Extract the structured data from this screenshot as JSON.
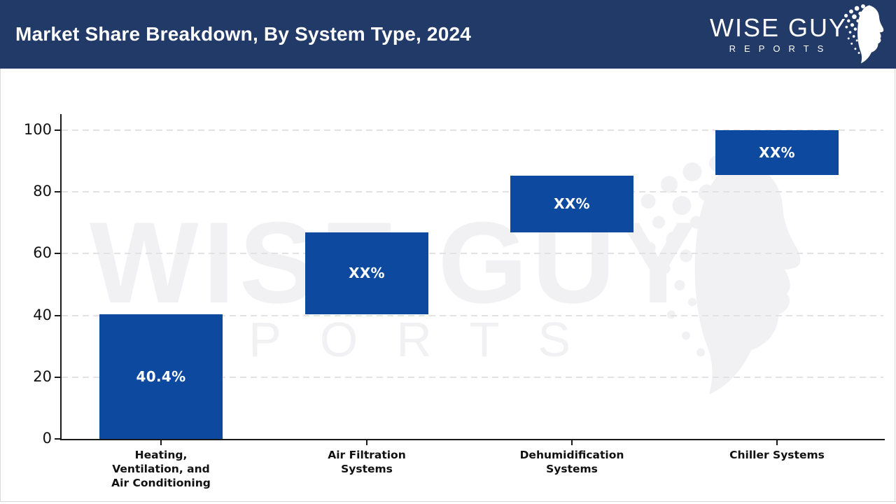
{
  "header": {
    "background": "#223a68",
    "title": "Market Share Breakdown, By System Type, 2024",
    "logo": {
      "primary": "WISE GUY",
      "secondary": "REPORTS",
      "icon": "dotted-face-profile-icon"
    }
  },
  "watermark": {
    "primary": "WISE GUY",
    "secondary": "REPORTS"
  },
  "chart_data": {
    "type": "bar",
    "subtype": "waterfall",
    "title": "Market Share Breakdown, By System Type, 2024",
    "categories": [
      "Heating,\nVentilation, and\nAir Conditioning",
      "Air Filtration\nSystems",
      "Dehumidification\nSystems",
      "Chiller Systems"
    ],
    "series": [
      {
        "name": "Market share (%)",
        "segments": [
          {
            "start": 0,
            "end": 40.4,
            "label": "40.4%"
          },
          {
            "start": 40.4,
            "end": 67,
            "label": "XX%"
          },
          {
            "start": 67,
            "end": 85.3,
            "label": "XX%"
          },
          {
            "start": 85.5,
            "end": 100,
            "label": "XX%"
          }
        ]
      }
    ],
    "xlabel": "",
    "ylabel": "",
    "ylim": [
      0,
      100
    ],
    "yticks": [
      0,
      20,
      40,
      60,
      80,
      100
    ],
    "grid": "horizontal-dashed",
    "legend": "none",
    "colors": {
      "bar": "#0d4a9f",
      "bar_label": "#ffffff",
      "grid": "#e2e2e2",
      "axis": "#1a1a1a",
      "watermark": "#f1f1f3"
    }
  }
}
